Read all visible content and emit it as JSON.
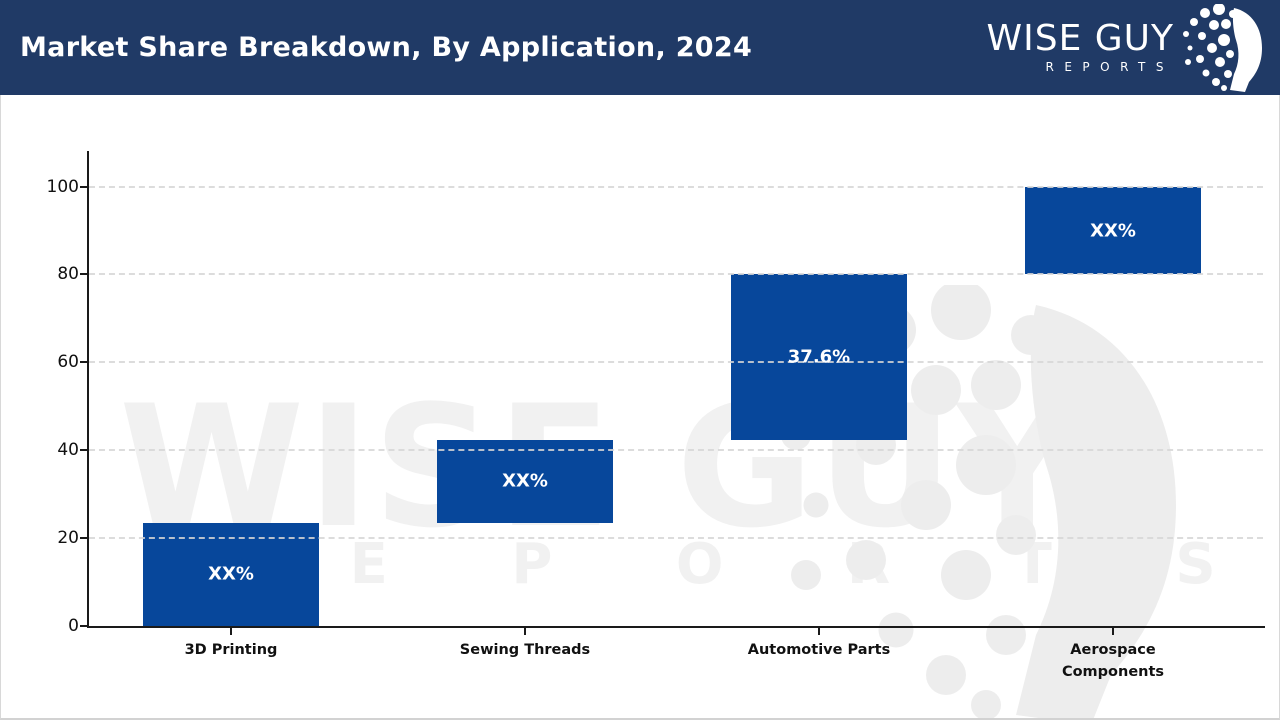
{
  "header": {
    "title": "Market Share Breakdown, By Application, 2024",
    "logo": {
      "line1": "WISE GUY",
      "line2": "REPORTS"
    }
  },
  "watermark": {
    "line1": "WISE GUY",
    "line2": "R E P O R T S"
  },
  "colors": {
    "header_bg": "#203a66",
    "bar": "#07479b",
    "grid": "#d6d6d6",
    "watermark": "#f1f1f1",
    "axis": "#1a1a1a",
    "bar_label": "#ffffff"
  },
  "chart_data": {
    "type": "bar",
    "subtype": "waterfall",
    "title": "Market Share Breakdown, By Application, 2024",
    "categories": [
      "3D Printing",
      "Sewing Threads",
      "Automotive Parts",
      "Aerospace\nComponents"
    ],
    "segments": [
      {
        "category": "3D Printing",
        "start": 0,
        "end": 23.5,
        "value": 23.5,
        "label": "XX%"
      },
      {
        "category": "Sewing Threads",
        "start": 23.5,
        "end": 42.4,
        "value": 18.9,
        "label": "XX%"
      },
      {
        "category": "Automotive Parts",
        "start": 42.4,
        "end": 80.0,
        "value": 37.6,
        "label": "37.6%"
      },
      {
        "category": "Aerospace\nComponents",
        "start": 80.0,
        "end": 100.0,
        "value": 20.0,
        "label": "XX%"
      }
    ],
    "yticks": [
      0,
      20,
      40,
      60,
      80,
      100
    ],
    "ylim": [
      0,
      108
    ],
    "xlabel": "",
    "ylabel": "",
    "grid": "horizontal-dashed-over-bars",
    "legend": null
  }
}
